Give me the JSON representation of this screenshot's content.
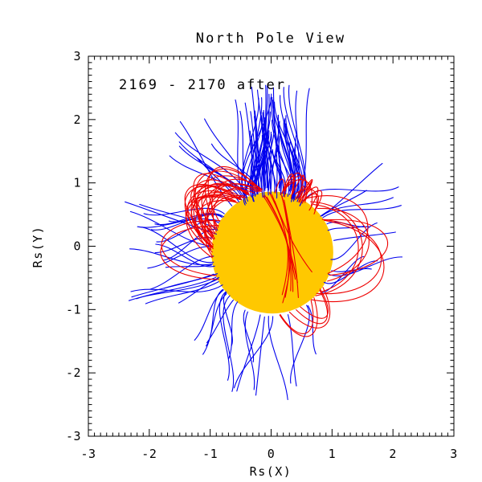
{
  "page": {
    "background": "#FFFFFF"
  },
  "chart_data": {
    "type": "line",
    "title": "North Pole View",
    "annotation": "2169 - 2170 after",
    "xlabel": "Rs(X)",
    "ylabel": "Rs(Y)",
    "xlim": [
      -3,
      3
    ],
    "ylim": [
      -3,
      3
    ],
    "x_ticks": [
      "-3",
      "-2",
      "-1",
      "0",
      "1",
      "2",
      "3"
    ],
    "y_ticks": [
      "-3",
      "-2",
      "-1",
      "0",
      "1",
      "2",
      "3"
    ],
    "x_tick_values": [
      -3,
      -2,
      -1,
      0,
      1,
      2,
      3
    ],
    "y_tick_values": [
      -3,
      -2,
      -1,
      0,
      1,
      2,
      3
    ],
    "minor_tick_interval": 0.1,
    "grid": false,
    "legend": "none",
    "sun": {
      "center_x": 0.02,
      "center_y": -0.1,
      "radius": 1.0,
      "color": "#FFC800"
    },
    "colors": {
      "open_field": "#0000EE",
      "closed_field": "#EE0000",
      "axis": "#000000",
      "text": "#000000"
    },
    "seed": 7,
    "line_families": [
      {
        "name": "polar-open-bundle",
        "type": "open",
        "color": "open_field",
        "count": 68,
        "theta": [
          58,
          122
        ],
        "r0": [
          0.86,
          1.03
        ],
        "end_r": [
          1.55,
          2.68
        ],
        "pull": 90,
        "mix": 0.72,
        "spread": 14
      },
      {
        "name": "left-open-fan",
        "type": "open",
        "color": "open_field",
        "count": 24,
        "theta": [
          132,
          214
        ],
        "r0": [
          0.96,
          1.03
        ],
        "end_r": [
          1.7,
          2.62
        ],
        "pull": 178,
        "mix": 0.45,
        "spread": 34
      },
      {
        "name": "upper-left-open-arcs",
        "type": "open",
        "color": "open_field",
        "count": 9,
        "theta": [
          100,
          132
        ],
        "r0": [
          0.95,
          1.03
        ],
        "end_r": [
          1.9,
          2.6
        ],
        "pull": 135,
        "mix": 0.5,
        "spread": 22
      },
      {
        "name": "right-open-fan",
        "type": "open",
        "color": "open_field",
        "count": 13,
        "theta": [
          -38,
          58
        ],
        "r0": [
          0.96,
          1.03
        ],
        "end_r": [
          1.5,
          2.4
        ],
        "pull": 15,
        "mix": 0.4,
        "spread": 30
      },
      {
        "name": "bottom-open-fan",
        "type": "open",
        "color": "open_field",
        "count": 17,
        "theta": [
          215,
          310
        ],
        "r0": [
          0.95,
          1.03
        ],
        "end_r": [
          1.45,
          2.35
        ],
        "pull": 262,
        "mix": 0.5,
        "spread": 26
      },
      {
        "name": "upper-left-closed-cluster",
        "type": "loop",
        "color": "closed_field",
        "count": 26,
        "thetaA": [
          98,
          128
        ],
        "thetaB": [
          148,
          188
        ],
        "foot_r": [
          0.97,
          1.02
        ],
        "apex_r": [
          1.05,
          1.6
        ]
      },
      {
        "name": "right-closed-loops",
        "type": "loop",
        "color": "closed_field",
        "count": 7,
        "thetaA": [
          28,
          62
        ],
        "thetaB": [
          -58,
          -18
        ],
        "foot_r": [
          0.97,
          1.02
        ],
        "apex_r": [
          1.35,
          1.88
        ]
      },
      {
        "name": "top-closed-scribble",
        "type": "loop",
        "color": "closed_field",
        "count": 14,
        "thetaA": [
          52,
          92
        ],
        "thetaB": [
          38,
          80
        ],
        "foot_r": [
          0.9,
          1.02
        ],
        "apex_r": [
          1.0,
          1.18
        ]
      },
      {
        "name": "disk-crossing-arcs",
        "type": "disk_arc",
        "color": "closed_field",
        "count": 9,
        "thetaS": [
          68,
          102
        ],
        "rS": [
          0.78,
          0.95
        ],
        "thetaE": [
          -78,
          -25
        ],
        "rE": [
          0.5,
          0.85
        ]
      },
      {
        "name": "bottom-closed-loop",
        "type": "loop",
        "color": "closed_field",
        "count": 2,
        "thetaA": [
          -86,
          -78
        ],
        "thetaB": [
          -52,
          -42
        ],
        "foot_r": [
          0.98,
          1.0
        ],
        "apex_r": [
          1.22,
          1.35
        ]
      },
      {
        "name": "left-long-loops",
        "type": "loop",
        "color": "closed_field",
        "count": 2,
        "thetaA": [
          148,
          156
        ],
        "thetaB": [
          196,
          206
        ],
        "foot_r": [
          0.98,
          1.0
        ],
        "apex_r": [
          1.72,
          1.92
        ]
      },
      {
        "name": "right-small-loops",
        "type": "loop",
        "color": "closed_field",
        "count": 3,
        "thetaA": [
          -44,
          -30
        ],
        "thetaB": [
          -76,
          -60
        ],
        "foot_r": [
          0.97,
          1.0
        ],
        "apex_r": [
          1.12,
          1.3
        ]
      }
    ]
  }
}
